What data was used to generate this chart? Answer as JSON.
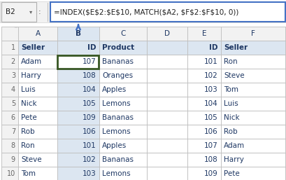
{
  "formula_bar_cell": "B2",
  "formula_bar_text": "=INDEX($E$2:$E$10, MATCH($A2, $F$2:$F$10, 0))",
  "col_letters": [
    "A",
    "B",
    "C",
    "D",
    "E",
    "F"
  ],
  "header_row": [
    "Seller",
    "ID",
    "Product",
    "",
    "ID",
    "Seller"
  ],
  "data_rows": [
    [
      "Adam",
      "107",
      "Bananas",
      "",
      "101",
      "Ron"
    ],
    [
      "Harry",
      "108",
      "Oranges",
      "",
      "102",
      "Steve"
    ],
    [
      "Luis",
      "104",
      "Apples",
      "",
      "103",
      "Tom"
    ],
    [
      "Nick",
      "105",
      "Lemons",
      "",
      "104",
      "Luis"
    ],
    [
      "Pete",
      "109",
      "Bananas",
      "",
      "105",
      "Nick"
    ],
    [
      "Rob",
      "106",
      "Lemons",
      "",
      "106",
      "Rob"
    ],
    [
      "Ron",
      "101",
      "Apples",
      "",
      "107",
      "Adam"
    ],
    [
      "Steve",
      "102",
      "Bananas",
      "",
      "108",
      "Harry"
    ],
    [
      "Tom",
      "103",
      "Lemons",
      "",
      "109",
      "Pete"
    ]
  ],
  "col_aligns": [
    "left",
    "right",
    "left",
    "left",
    "right",
    "left"
  ],
  "header_bg": "#dce6f1",
  "selected_col_bg": "#dce6f1",
  "white_bg": "#ffffff",
  "row_header_bg": "#f2f2f2",
  "grid_color": "#c0c0c0",
  "header_text_color": "#1f3864",
  "data_text_color": "#1f3864",
  "formula_border": "#4472c4",
  "selected_cell_border": "#375623",
  "arrow_color": "#4472c4",
  "fig_bg": "#ffffff"
}
